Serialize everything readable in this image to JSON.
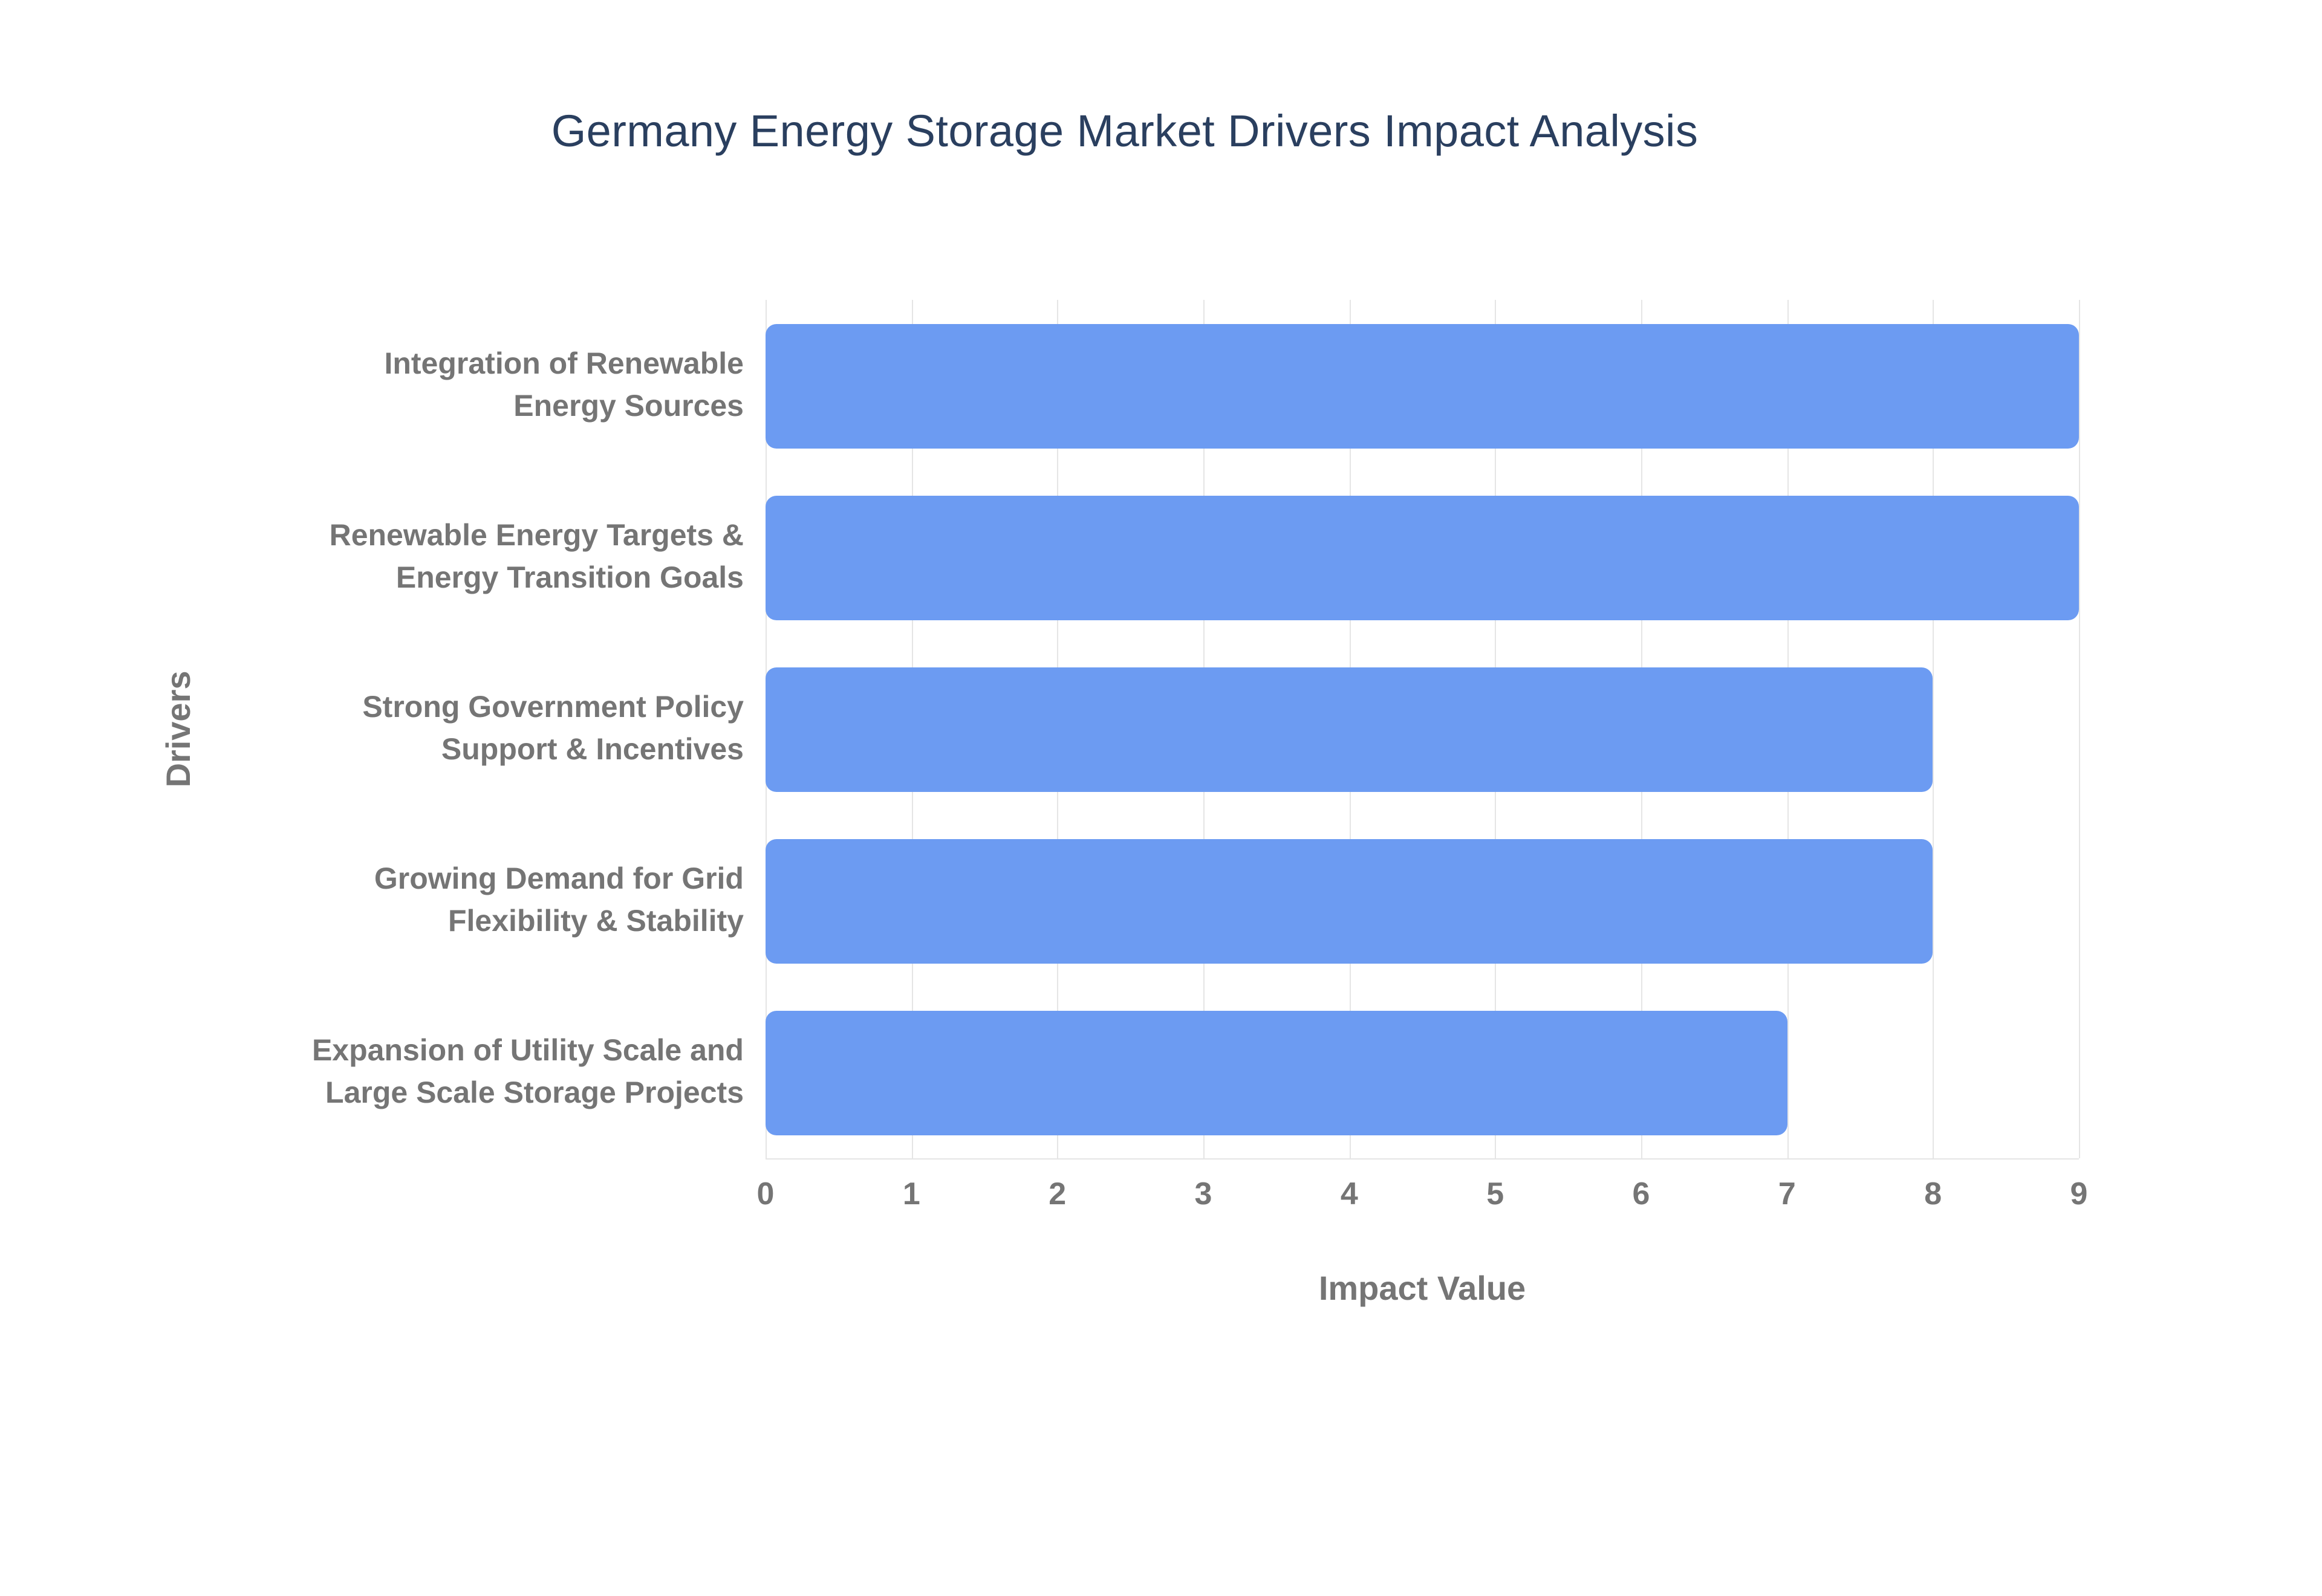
{
  "colors": {
    "bar": "#6c9bf2",
    "title": "#2a3f5f",
    "axis_text": "#757575",
    "grid": "#e5e5e5",
    "background": "#ffffff"
  },
  "chart_data": {
    "type": "bar",
    "orientation": "horizontal",
    "title": "Germany Energy Storage Market Drivers Impact Analysis",
    "xlabel": "Impact Value",
    "ylabel": "Drivers",
    "categories": [
      "Integration of Renewable\nEnergy Sources",
      "Renewable Energy Targets &\nEnergy Transition Goals",
      "Strong Government Policy\nSupport & Incentives",
      "Growing Demand for Grid\nFlexibility & Stability",
      "Expansion of Utility Scale and\nLarge Scale Storage Projects"
    ],
    "values": [
      9,
      9,
      8,
      8,
      7
    ],
    "xlim": [
      0,
      9
    ],
    "xticks": [
      0,
      1,
      2,
      3,
      4,
      5,
      6,
      7,
      8,
      9
    ],
    "grid": true,
    "legend": false
  }
}
